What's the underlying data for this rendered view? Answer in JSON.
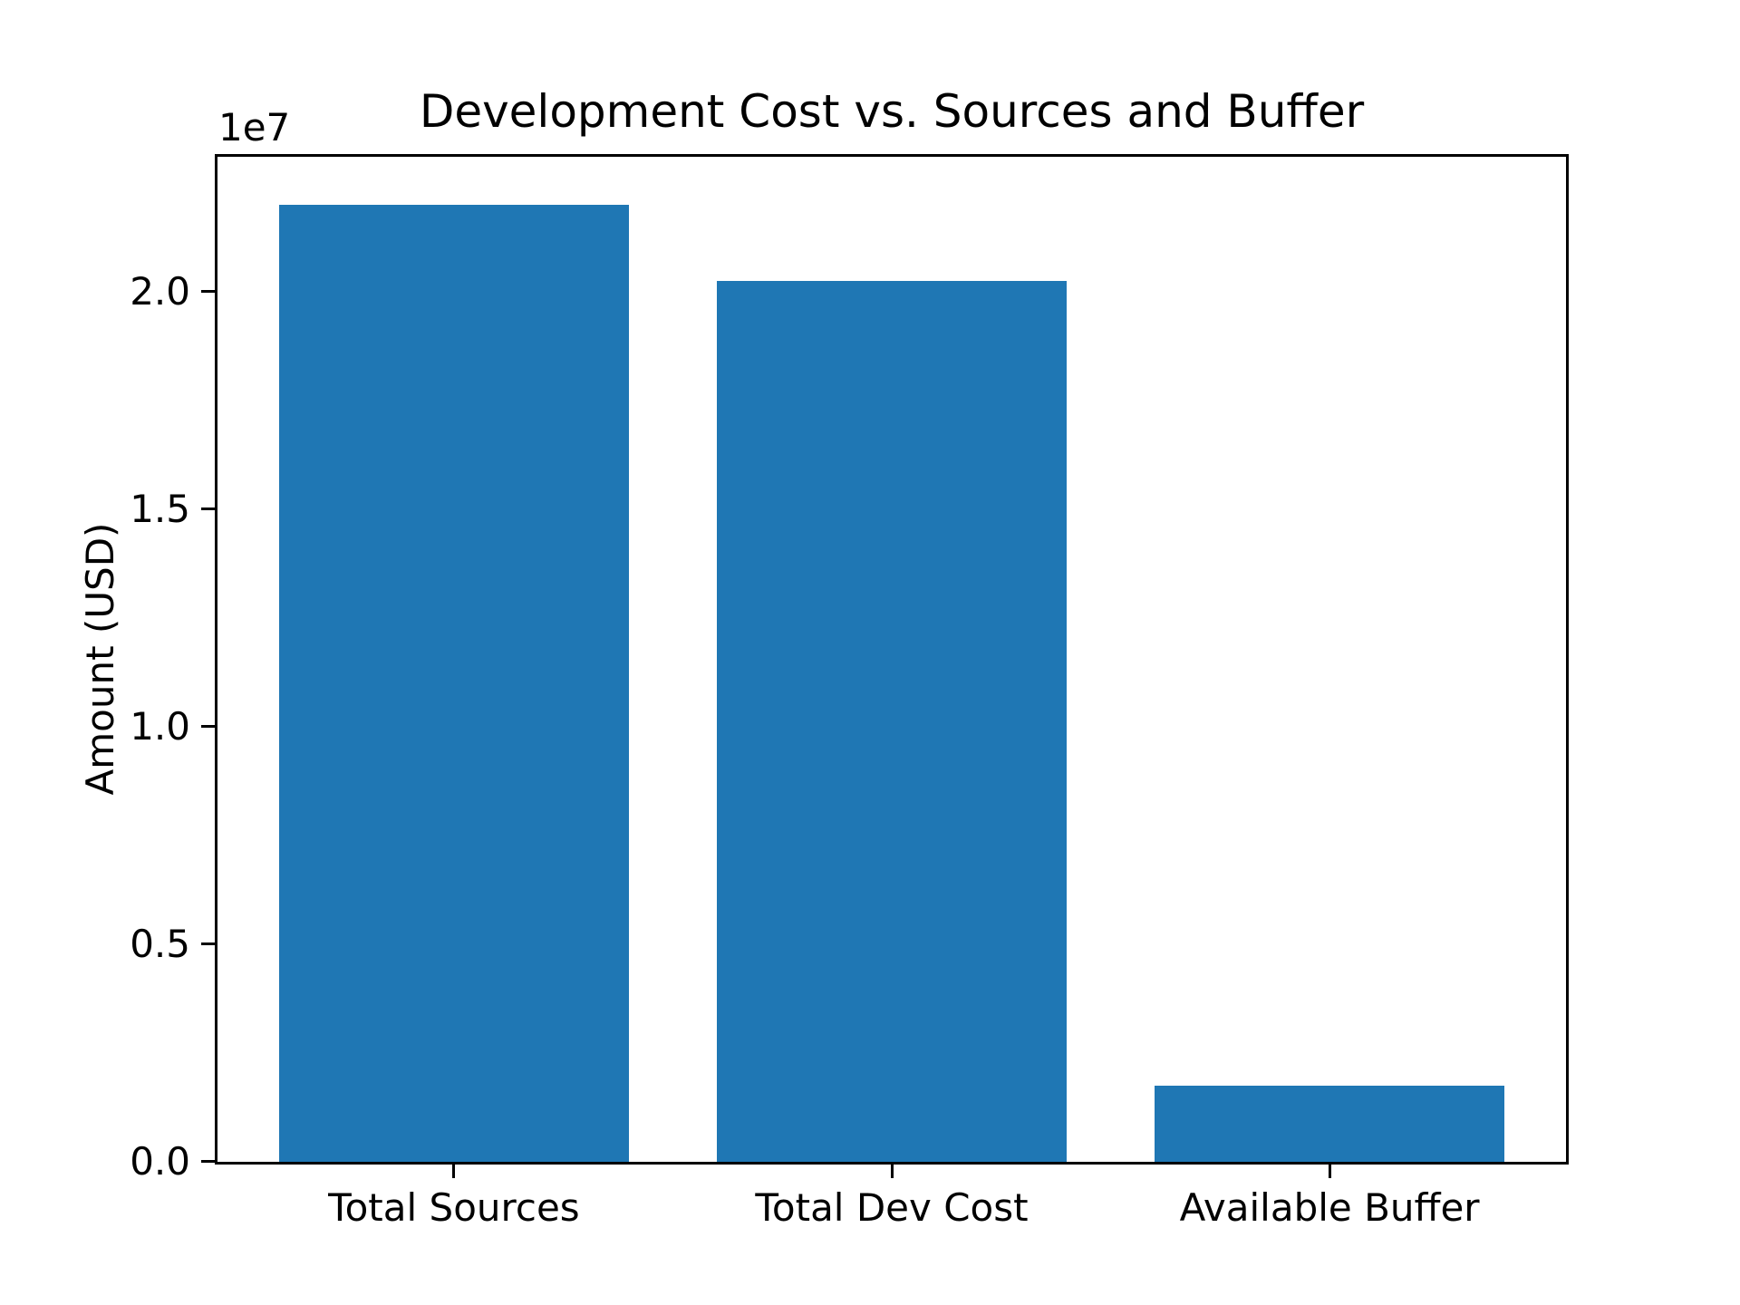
{
  "chart_data": {
    "type": "bar",
    "title": "Development Cost vs. Sources and Buffer",
    "categories": [
      "Total Sources",
      "Total Dev Cost",
      "Available Buffer"
    ],
    "values": [
      22000000,
      20250000,
      1750000
    ],
    "xlabel": "",
    "ylabel": "Amount (USD)",
    "offset_text": "1e7",
    "ylim": [
      0,
      23100000
    ],
    "xlim": [
      -0.54,
      2.54
    ],
    "yticks": [
      0,
      5000000,
      10000000,
      15000000,
      20000000
    ],
    "ytick_labels": [
      "0.0",
      "0.5",
      "1.0",
      "1.5",
      "2.0"
    ],
    "bar_width_fraction": 0.8,
    "bar_color": "#1f77b4",
    "axis_color": "#000000",
    "background_color": "#ffffff",
    "grid": false,
    "legend": "none"
  }
}
